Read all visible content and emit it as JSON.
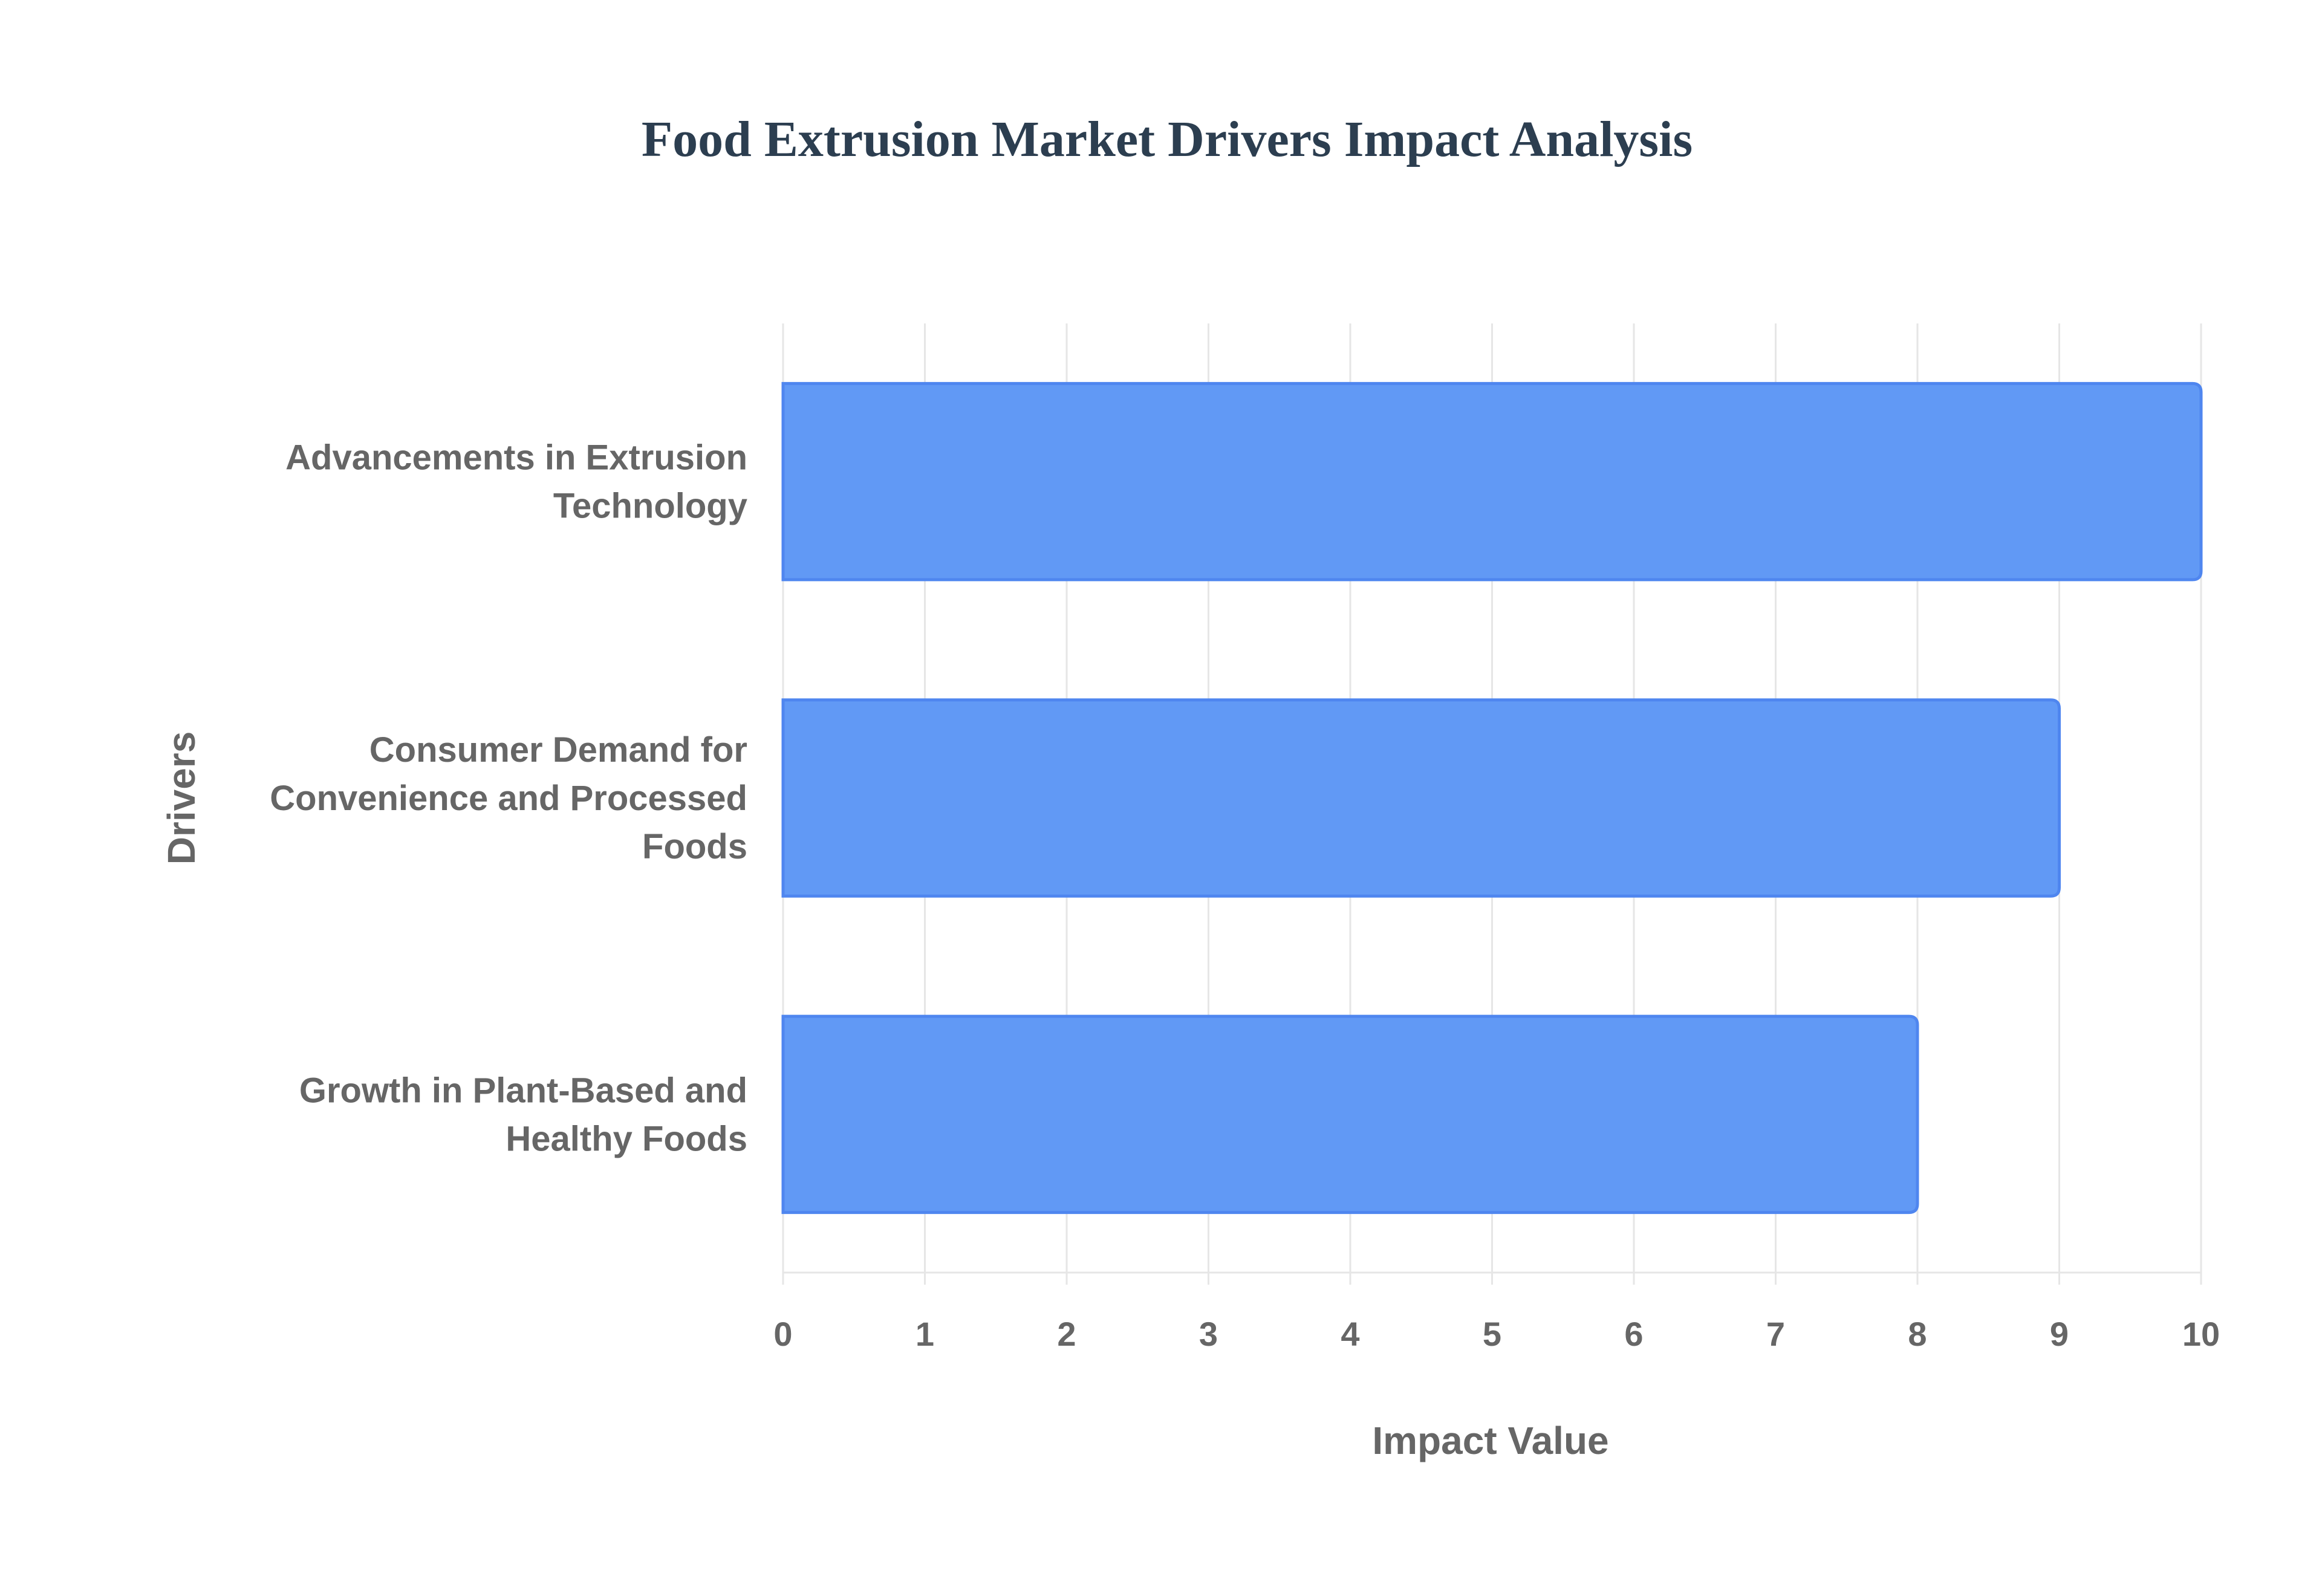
{
  "chart_data": {
    "type": "bar",
    "orientation": "horizontal",
    "title": "Food Extrusion Market Drivers Impact Analysis",
    "xlabel": "Impact Value",
    "ylabel": "Drivers",
    "categories": [
      [
        "Advancements in Extrusion",
        "Technology"
      ],
      [
        "Consumer Demand for",
        "Convenience and Processed",
        "Foods"
      ],
      [
        "Growth in Plant-Based and",
        "Healthy Foods"
      ]
    ],
    "values": [
      10,
      9,
      8
    ],
    "xlim": [
      0,
      10
    ],
    "xticks": [
      "0",
      "1",
      "2",
      "3",
      "4",
      "5",
      "6",
      "7",
      "8",
      "9",
      "10"
    ],
    "grid": true,
    "legend": false,
    "bar_color": "#6199f5",
    "bar_border_color": "#4f86ef",
    "grid_color": "#e6e6e6",
    "title_color": "#2c3e50",
    "label_color": "#666666"
  }
}
